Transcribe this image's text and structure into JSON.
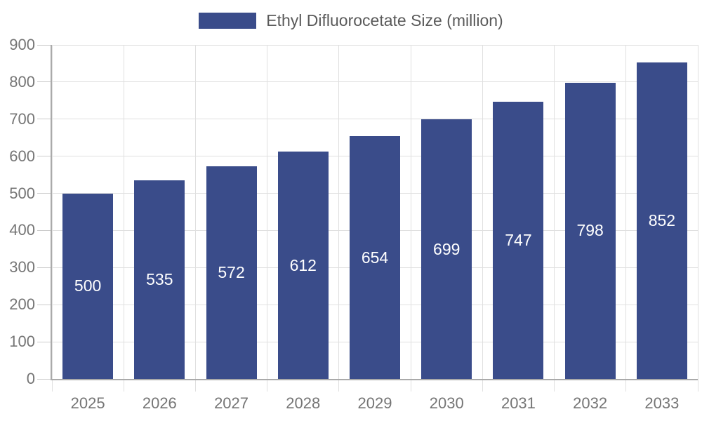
{
  "legend": {
    "items": [
      {
        "label": "Ethyl Difluorocetate Size (million)",
        "color": "#3A4C8A"
      }
    ]
  },
  "chart_data": {
    "type": "bar",
    "title": "Ethyl Difluorocetate Size (million)",
    "categories": [
      "2025",
      "2026",
      "2027",
      "2028",
      "2029",
      "2030",
      "2031",
      "2032",
      "2033"
    ],
    "values": [
      500,
      535,
      572,
      612,
      654,
      699,
      747,
      798,
      852
    ],
    "xlabel": "",
    "ylabel": "",
    "ylim": [
      0,
      900
    ],
    "ytick_interval": 100,
    "yticks": [
      0,
      100,
      200,
      300,
      400,
      500,
      600,
      700,
      800,
      900
    ],
    "grid": true,
    "legend_position": "top-center",
    "value_label_position": "inside-center",
    "bar_color": "#3A4C8A",
    "value_label_color": "#FFFFFF"
  },
  "colors": {
    "background": "#FFFFFF",
    "bar": "#3A4C8A",
    "axis_line": "#AAAAAA",
    "gridline": "#E0E0E0",
    "y_tick": "#CCCCCC",
    "x_tick": "#E0E0E0",
    "axis_label": "#757575",
    "legend_text": "#5A5A5A",
    "value_label": "#FFFFFF"
  }
}
